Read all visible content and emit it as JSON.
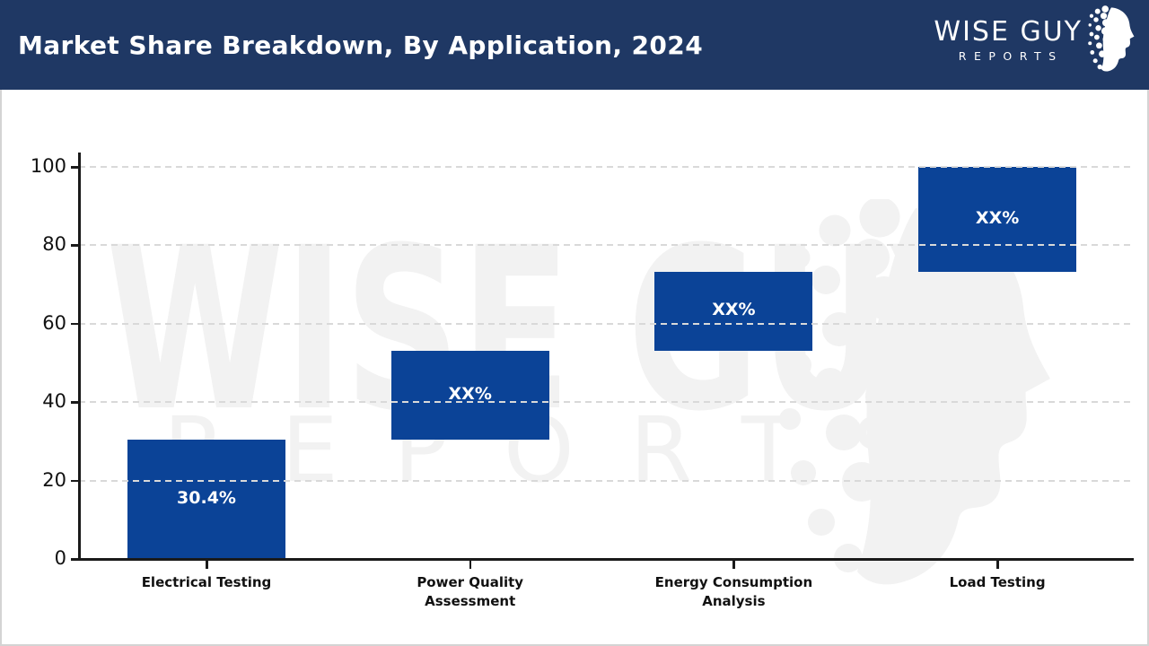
{
  "header": {
    "title": "Market Share Breakdown, By Application, 2024",
    "bg_color": "#1f3864",
    "logo": {
      "wordmark": "WISE GUY",
      "subtext": "REPORTS",
      "face_icon": "dotted-head-profile"
    }
  },
  "watermark": {
    "line1": "WISE GUY",
    "line2": "REPORTS"
  },
  "chart_data": {
    "type": "bar",
    "variant": "waterfall",
    "title": "Market Share Breakdown, By Application, 2024",
    "categories": [
      "Electrical Testing",
      "Power Quality Assessment",
      "Energy Consumption Analysis",
      "Load Testing"
    ],
    "bars": [
      {
        "category": "Electrical Testing",
        "start": 0,
        "end": 30.4,
        "label": "30.4%"
      },
      {
        "category": "Power Quality Assessment",
        "start": 30.4,
        "end": 53,
        "label": "XX%"
      },
      {
        "category": "Energy Consumption Analysis",
        "start": 53,
        "end": 73.2,
        "label": "XX%"
      },
      {
        "category": "Load Testing",
        "start": 73.2,
        "end": 100,
        "label": "XX%"
      }
    ],
    "ylim": [
      0,
      100
    ],
    "yticks": [
      0,
      20,
      40,
      60,
      80,
      100
    ],
    "xlabel": "",
    "ylabel": "",
    "grid": "horizontal-dashed",
    "legend": "none",
    "colors": {
      "bar": "#0b4397",
      "bar_label": "#ffffff",
      "grid": "#d9d9d9",
      "axis": "#1a1a1a",
      "tick_label": "#111111",
      "watermark": "#f2f2f2"
    }
  }
}
